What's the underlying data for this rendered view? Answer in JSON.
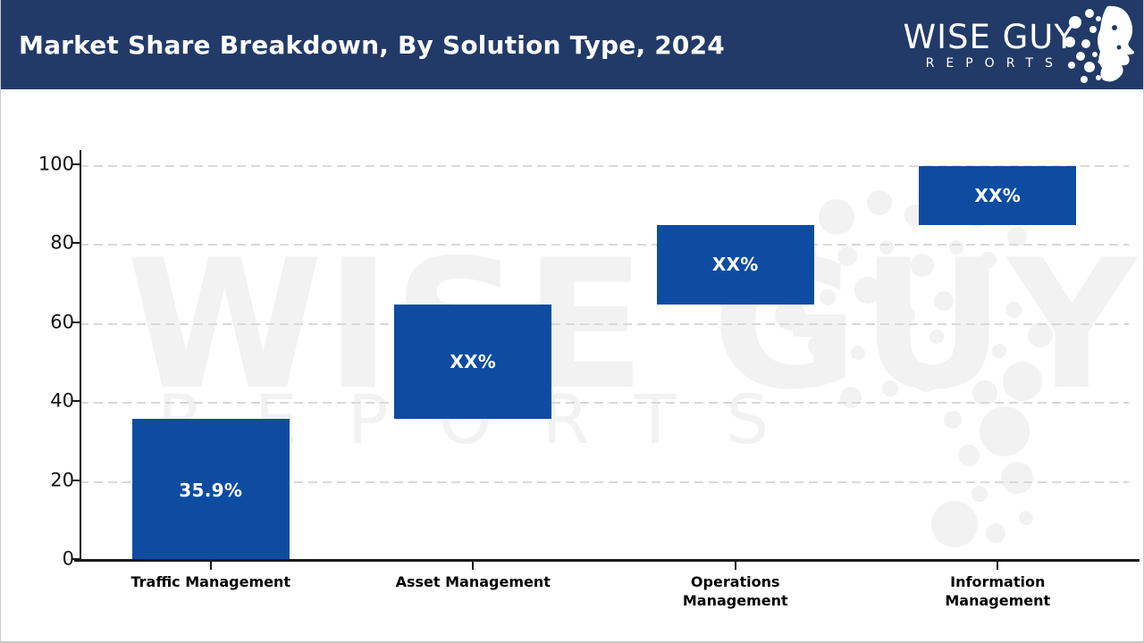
{
  "page": {
    "background": "#ffffff",
    "border_color": "#cccccc"
  },
  "header": {
    "background": "#223a68",
    "title": "Market Share Breakdown, By Solution Type, 2024",
    "title_color": "#ffffff",
    "logo": {
      "name": "WISE GUY",
      "sub": "REPORTS"
    }
  },
  "watermark": {
    "line1": "WISE GUY",
    "line2": "REPORTS"
  },
  "chart_data": {
    "type": "bar",
    "subtype": "waterfall",
    "title": "Market Share Breakdown, By Solution Type, 2024",
    "categories": [
      "Traffic Management",
      "Asset Management",
      "Operations Management",
      "Information Management"
    ],
    "category_lines": [
      [
        "Traffic Management"
      ],
      [
        "Asset Management"
      ],
      [
        "Operations",
        "Management"
      ],
      [
        "Information",
        "Management"
      ]
    ],
    "segments": [
      {
        "category": "Traffic Management",
        "start": 0,
        "end": 35.9,
        "label": "35.9%"
      },
      {
        "category": "Asset Management",
        "start": 36,
        "end": 65,
        "label": "XX%"
      },
      {
        "category": "Operations Management",
        "start": 65,
        "end": 85,
        "label": "XX%"
      },
      {
        "category": "Information Management",
        "start": 85,
        "end": 100,
        "label": "XX%"
      }
    ],
    "yticks": [
      0,
      20,
      40,
      60,
      80,
      100
    ],
    "ylim": [
      0,
      104
    ],
    "xlabel": "",
    "ylabel": "",
    "grid": "dashed-horizontal",
    "legend": "none",
    "bar_color": "#0d4ca1",
    "bar_label_color": "#ffffff",
    "axis_color": "#1a1a1a",
    "grid_color": "#d9d9d9"
  }
}
